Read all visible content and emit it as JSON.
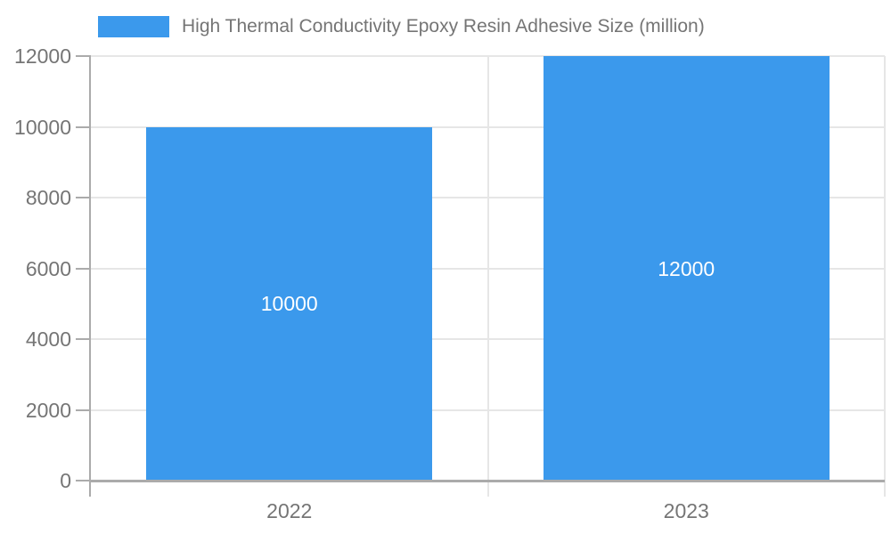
{
  "chart_data": {
    "type": "bar",
    "title": "High Thermal Conductivity Epoxy Resin Adhesive Size (million)",
    "categories": [
      "2022",
      "2023"
    ],
    "values": [
      10000,
      12000
    ],
    "bar_labels": [
      "10000",
      "12000"
    ],
    "xlabel": "",
    "ylabel": "",
    "ylim": [
      0,
      12000
    ],
    "yticks": [
      0,
      2000,
      4000,
      6000,
      8000,
      10000,
      12000
    ],
    "grid": true,
    "legend_position": "top",
    "bar_label_position": "inside-center"
  },
  "colors": {
    "bar": "#3B99EC",
    "axis": "#ABABAB",
    "grid": "#E6E6E6",
    "text": "#757575",
    "bar_label": "#FFFFFF",
    "background": "#FFFFFF"
  }
}
